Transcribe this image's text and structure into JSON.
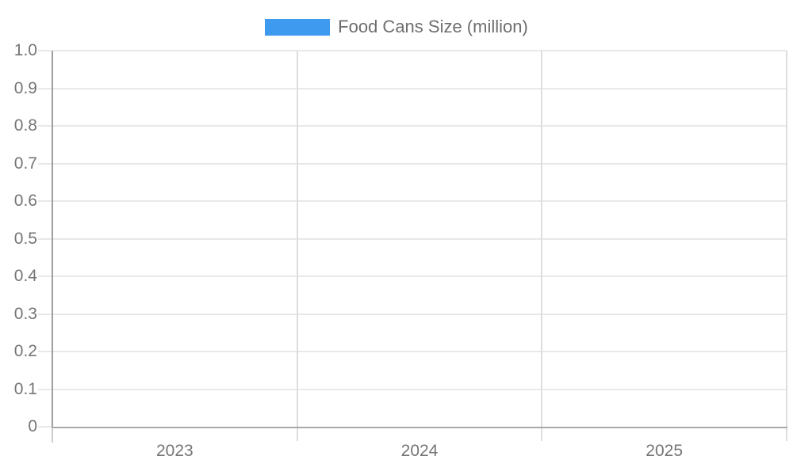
{
  "legend": {
    "label": "Food Cans Size (million)",
    "swatch_color": "#3E9AEF"
  },
  "chart_data": {
    "type": "bar",
    "title": "Food Cans Size (million)",
    "categories": [
      "2023",
      "2024",
      "2025"
    ],
    "series": [
      {
        "name": "Food Cans Size (million)",
        "color": "#3E9AEF",
        "values": [
          null,
          null,
          null
        ]
      }
    ],
    "xlabel": "",
    "ylabel": "",
    "ylim": [
      0,
      1.0
    ],
    "ytick_step": 0.1,
    "ytick_labels": [
      "1.0",
      "0.9",
      "0.8",
      "0.7",
      "0.6",
      "0.5",
      "0.4",
      "0.3",
      "0.2",
      "0.1",
      "0"
    ],
    "grid": true,
    "legend_position": "top-center",
    "note": "no data plotted; empty plot area"
  },
  "colors": {
    "grid_horizontal": "#e8e8e8",
    "grid_vertical": "#dedede",
    "axis_y": "#9e9e9e",
    "axis_x": "#a9a9a9",
    "tick_tail": "#cccccc",
    "label_text": "#757575",
    "legend_text": "#6e6e6e",
    "background": "#ffffff"
  }
}
